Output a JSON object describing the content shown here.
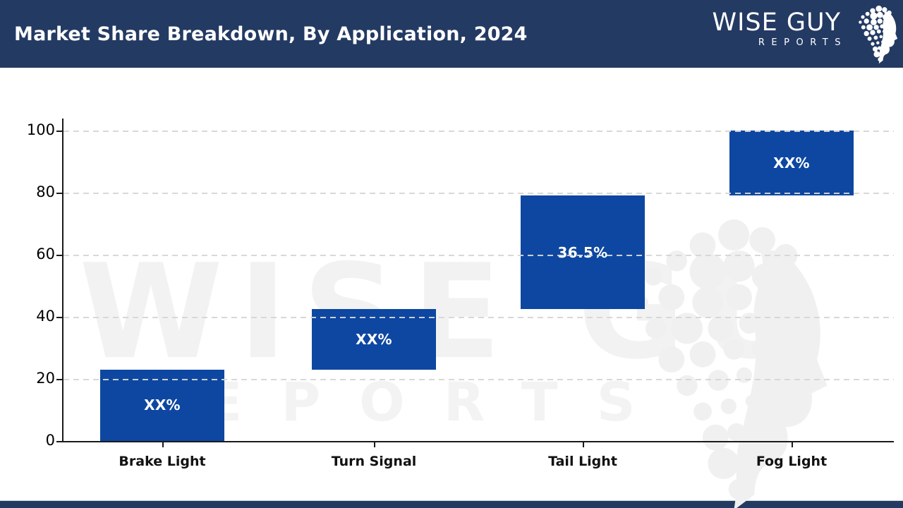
{
  "header": {
    "title": "Market Share Breakdown, By Application, 2024",
    "logo": {
      "primary": "WISE GUY",
      "secondary": "REPORTS"
    }
  },
  "watermark": {
    "primary": "WISE GU",
    "secondary": "REPORTS"
  },
  "colors": {
    "header_bg": "#233a63",
    "footer_bg": "#233a63",
    "bar": "#0d47a1",
    "bar_label": "#ffffff",
    "gridline": "#d6d6d6",
    "axis": "#1a1a1a",
    "watermark": "#f2f2f2"
  },
  "chart_data": {
    "type": "bar",
    "subtype": "waterfall-floating-bars",
    "title": "Market Share Breakdown, By Application, 2024",
    "categories": [
      "Brake Light",
      "Turn Signal",
      "Tail Light",
      "Fog Light"
    ],
    "series": [
      {
        "name": "Market Share (%)",
        "ranges": [
          [
            0,
            23
          ],
          [
            23,
            42.5
          ],
          [
            42.5,
            79
          ],
          [
            79,
            100
          ]
        ],
        "values": [
          23,
          19.5,
          36.5,
          21
        ]
      }
    ],
    "bar_labels": [
      "XX%",
      "XX%",
      "36.5%",
      "XX%"
    ],
    "xlabel": "",
    "ylabel": "",
    "ylim": [
      0,
      100
    ],
    "yticks": [
      0,
      20,
      40,
      60,
      80,
      100
    ],
    "grid": "horizontal-dashed-over-bars",
    "legend": "none"
  }
}
